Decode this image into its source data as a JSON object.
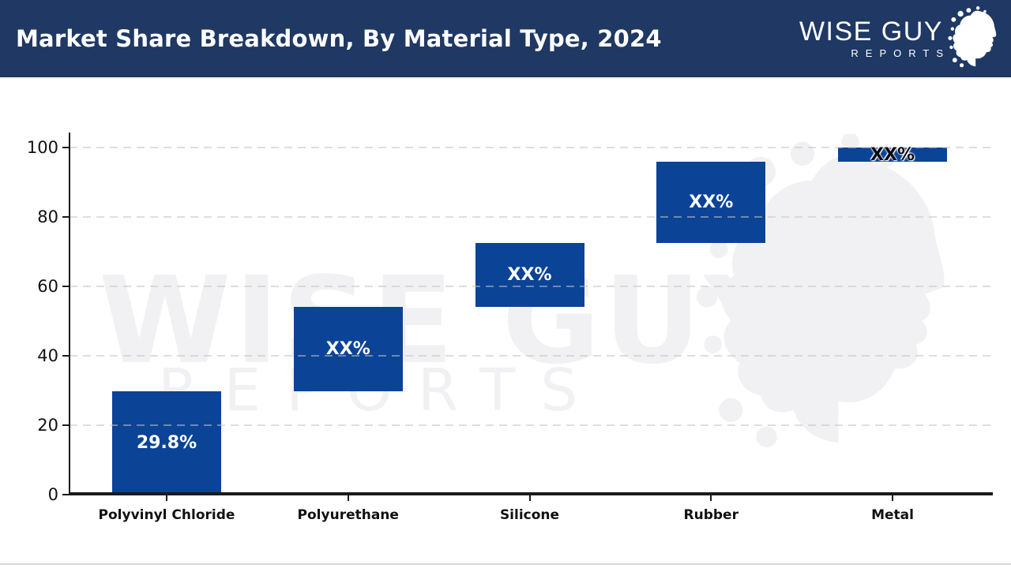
{
  "header": {
    "title": "Market Share Breakdown, By Material Type, 2024",
    "bg_color": "#1F3864",
    "logo": {
      "line1": "WISE GUY",
      "line2": "REPORTS"
    }
  },
  "watermark": {
    "line1": "WISE GUY",
    "line2": "REPORTS"
  },
  "chart_data": {
    "type": "bar",
    "subtype": "waterfall",
    "title": "Market Share Breakdown, By Material Type, 2024",
    "categories": [
      "Polyvinyl Chloride",
      "Polyurethane",
      "Silicone",
      "Rubber",
      "Metal"
    ],
    "segments": [
      {
        "category": "Polyvinyl Chloride",
        "start": 0,
        "end": 29.8,
        "value": 29.8,
        "label": "29.8%",
        "label_style": "inside-white"
      },
      {
        "category": "Polyurethane",
        "start": 29.8,
        "end": 54.2,
        "value": 24.4,
        "label": "XX%",
        "label_style": "inside-white"
      },
      {
        "category": "Silicone",
        "start": 54.2,
        "end": 72.5,
        "value": 18.3,
        "label": "XX%",
        "label_style": "inside-white"
      },
      {
        "category": "Rubber",
        "start": 72.5,
        "end": 95.8,
        "value": 23.3,
        "label": "XX%",
        "label_style": "inside-white"
      },
      {
        "category": "Metal",
        "start": 95.8,
        "end": 100,
        "value": 4.2,
        "label": "XX%",
        "label_style": "dark-outline"
      }
    ],
    "bar_color": "#0B4397",
    "yticks": [
      0,
      20,
      40,
      60,
      80,
      100
    ],
    "ylim": [
      0,
      104
    ],
    "grid": "dashed-horizontal",
    "legend": "none",
    "xlabel": "",
    "ylabel": ""
  }
}
